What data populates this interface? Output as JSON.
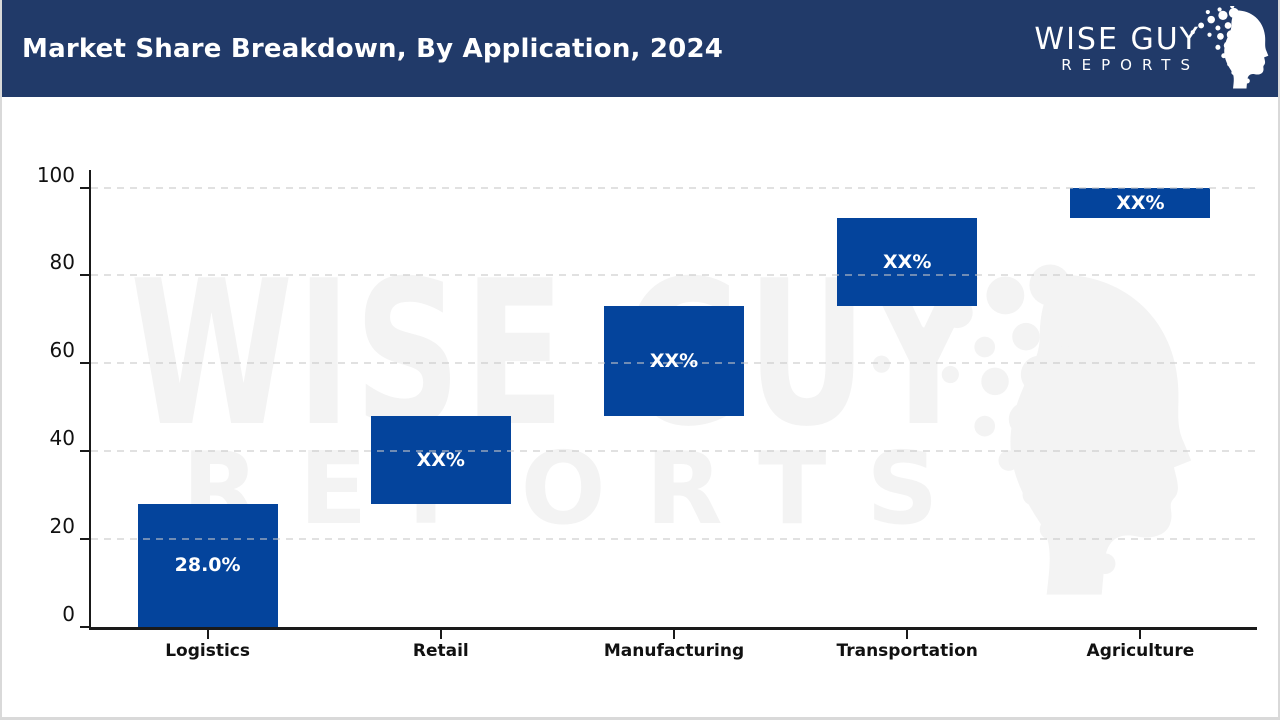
{
  "header": {
    "title": "Market Share Breakdown, By Application, 2024",
    "logo": {
      "line1": "WISE GUY",
      "line2": "REPORTS"
    }
  },
  "watermark": {
    "line1": "WISE GUY",
    "line2": "REPORTS"
  },
  "colors": {
    "header_bg": "#213a69",
    "bar": "#04449c",
    "bar_label_text": "#ffffff",
    "grid_dash": "rgba(200,200,200,0.55)",
    "axis": "#1a1a1a",
    "tick_text": "#111111",
    "watermark": "#f3f3f3",
    "title_text": "#ffffff"
  },
  "chart_data": {
    "type": "bar",
    "subtype": "waterfall",
    "title": "Market Share Breakdown, By Application, 2024",
    "categories": [
      "Logistics",
      "Retail",
      "Manufacturing",
      "Transportation",
      "Agriculture"
    ],
    "segments": [
      {
        "category": "Logistics",
        "start": 0,
        "end": 28,
        "value": 28,
        "label": "28.0%"
      },
      {
        "category": "Retail",
        "start": 28,
        "end": 48,
        "value": 20,
        "label": "XX%"
      },
      {
        "category": "Manufacturing",
        "start": 48,
        "end": 73,
        "value": 25,
        "label": "XX%"
      },
      {
        "category": "Transportation",
        "start": 73,
        "end": 93,
        "value": 20,
        "label": "XX%"
      },
      {
        "category": "Agriculture",
        "start": 93,
        "end": 100,
        "value": 7,
        "label": "XX%"
      }
    ],
    "yticks": [
      0,
      20,
      40,
      60,
      80,
      100
    ],
    "ylim": [
      0,
      104
    ],
    "xlabel": "",
    "ylabel": "",
    "grid": "dashed-horizontal",
    "legend": "none"
  }
}
